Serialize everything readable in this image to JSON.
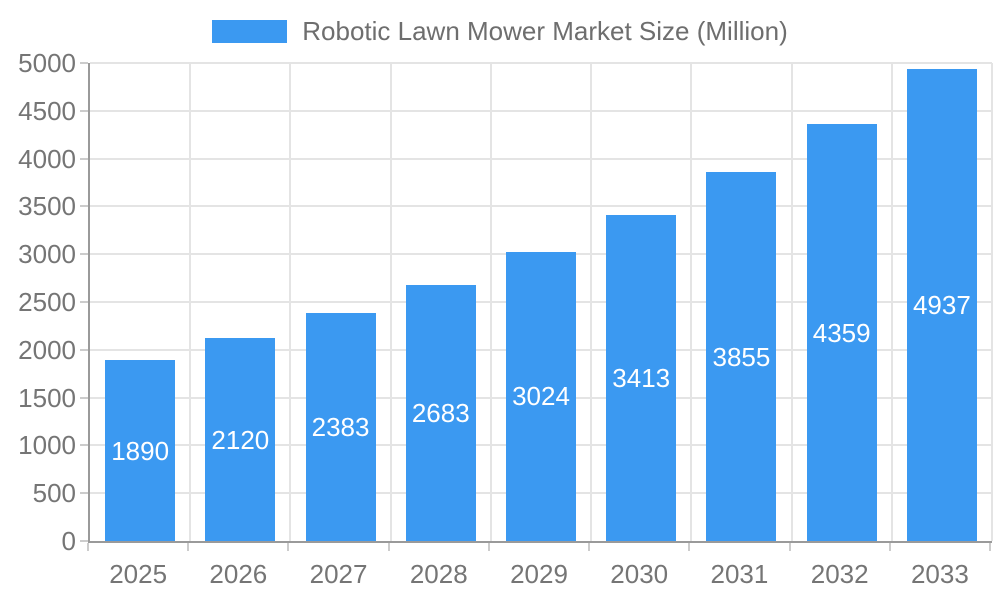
{
  "chart_data": {
    "type": "bar",
    "title": "Robotic Lawn Mower Market Size (Million)",
    "categories": [
      "2025",
      "2026",
      "2027",
      "2028",
      "2029",
      "2030",
      "2031",
      "2032",
      "2033"
    ],
    "values": [
      1890,
      2120,
      2383,
      2683,
      3024,
      3413,
      3855,
      4359,
      4937
    ],
    "xlabel": "",
    "ylabel": "",
    "ylim": [
      0,
      5000
    ],
    "ytick_step": 500,
    "grid": true,
    "legend_position": "top-center",
    "value_labels": "inside-center",
    "colors": {
      "bar": "#3b99f1",
      "bar_value_label": "#ffffff",
      "axis_text": "#757575",
      "legend_text": "#6e6e6e",
      "gridline": "#e4e4e4",
      "axis_line": "#9a9a9a",
      "tick": "#cccccc",
      "background": "#ffffff"
    }
  }
}
